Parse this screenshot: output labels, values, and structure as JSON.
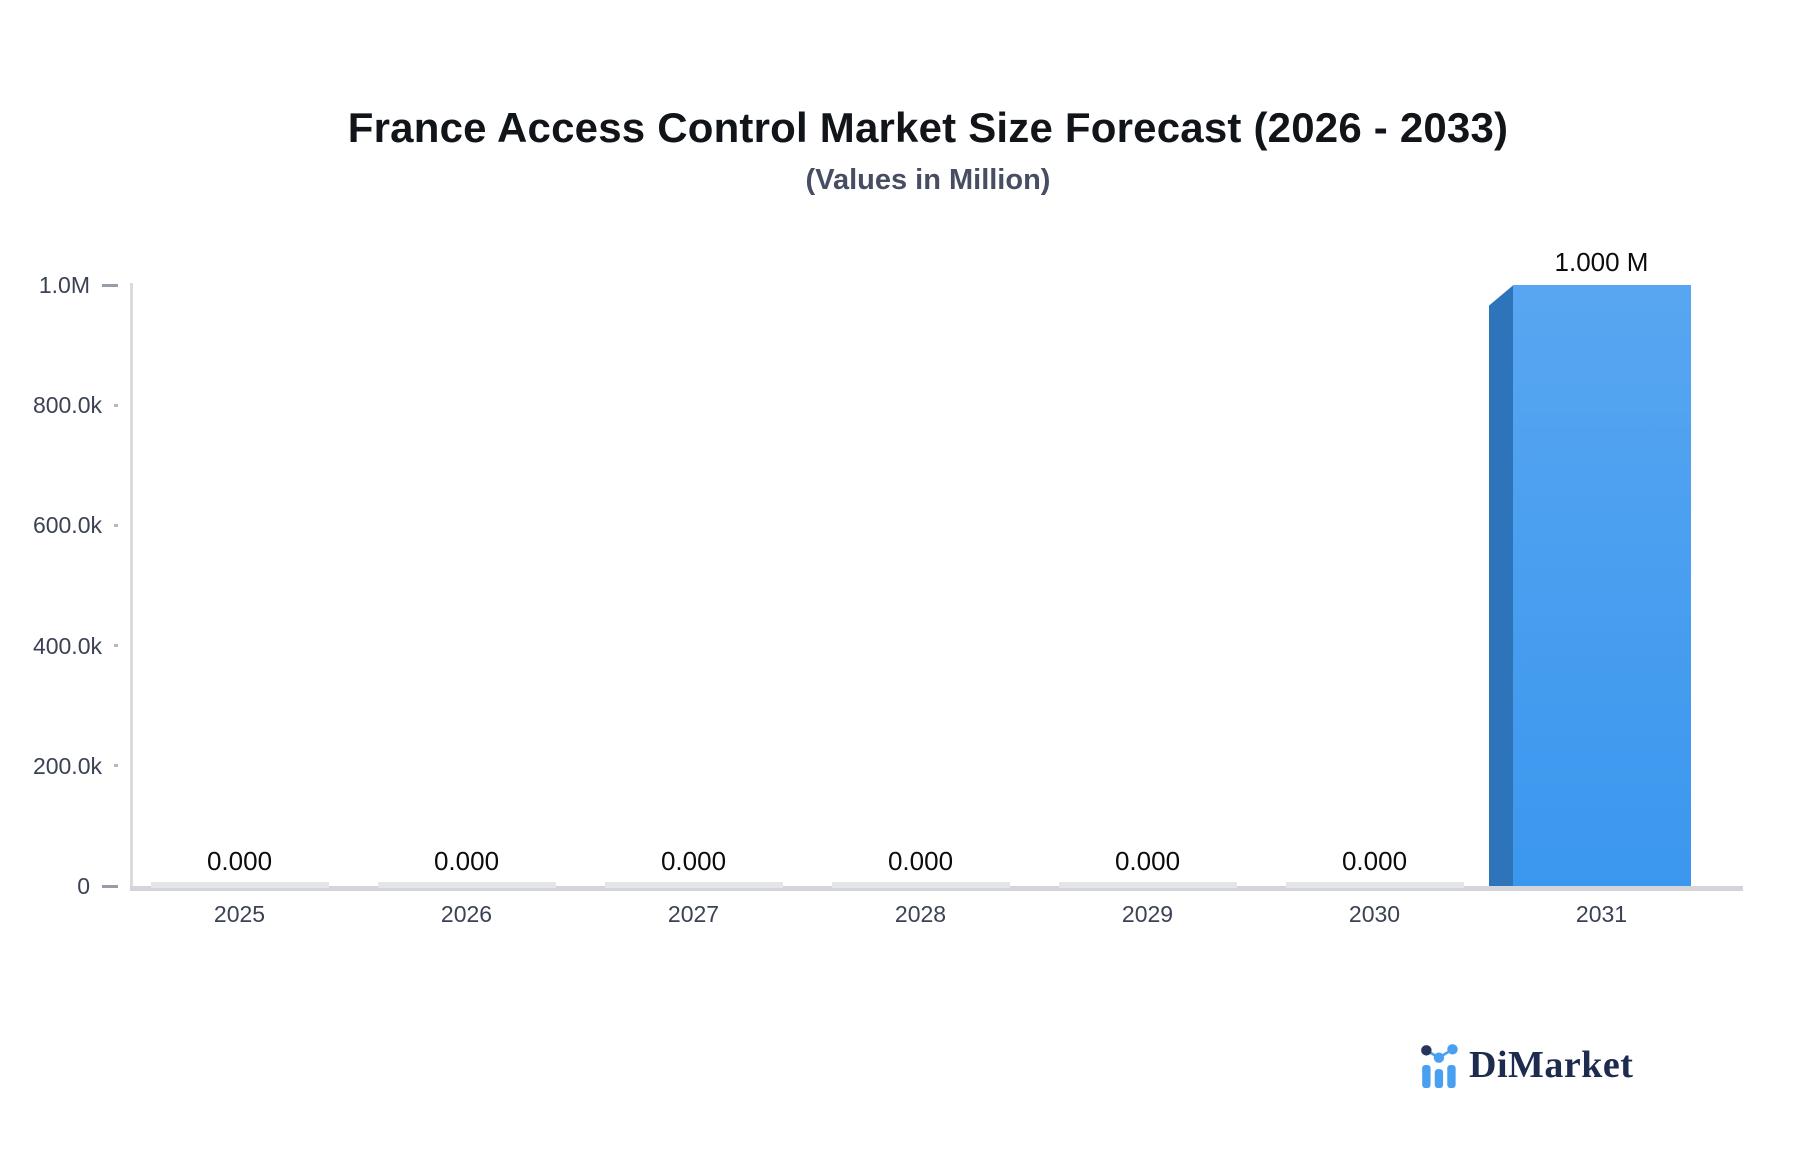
{
  "header": {
    "title": "France Access Control Market Size Forecast (2026 - 2033)",
    "subtitle": "(Values in Million)"
  },
  "watermark": {
    "brand": "DiMarket"
  },
  "colors": {
    "background": "#ffffff",
    "bar_face_top": "#58a6f1",
    "bar_face_bottom": "#3b97ee",
    "bar_side_3d": "#2e74ba",
    "zero_bar": "#e4e5e9",
    "axis_line": "#d4d5da",
    "tick_text": "#3b4254",
    "value_label_text": "#0b0c0e",
    "title_text": "#111419",
    "subtitle_text": "#474d62",
    "logo_navy": "#1d2b4e",
    "logo_blue": "#4aa0f0"
  },
  "chart_data": {
    "type": "bar",
    "title": "France Access Control Market Size Forecast (2026 - 2033)",
    "subtitle": "(Values in Million)",
    "categories": [
      "2025",
      "2026",
      "2027",
      "2028",
      "2029",
      "2030",
      "2031"
    ],
    "values": [
      0,
      0,
      0,
      0,
      0,
      0,
      1000000
    ],
    "value_labels": [
      "0.000",
      "0.000",
      "0.000",
      "0.000",
      "0.000",
      "0.000",
      "1.000 M"
    ],
    "xlabel": "",
    "ylabel": "",
    "ylim": [
      0,
      1000000
    ],
    "yticks": [
      {
        "value": 1000000,
        "label": "1.0M"
      },
      {
        "value": 800000,
        "label": "800.0k"
      },
      {
        "value": 600000,
        "label": "600.0k"
      },
      {
        "value": 400000,
        "label": "400.0k"
      },
      {
        "value": 200000,
        "label": "200.0k"
      },
      {
        "value": 0,
        "label": "0"
      }
    ],
    "grid": false,
    "legend": false,
    "bar_color": "#4aa0f0",
    "bar_style": "3d-left-bevel"
  }
}
